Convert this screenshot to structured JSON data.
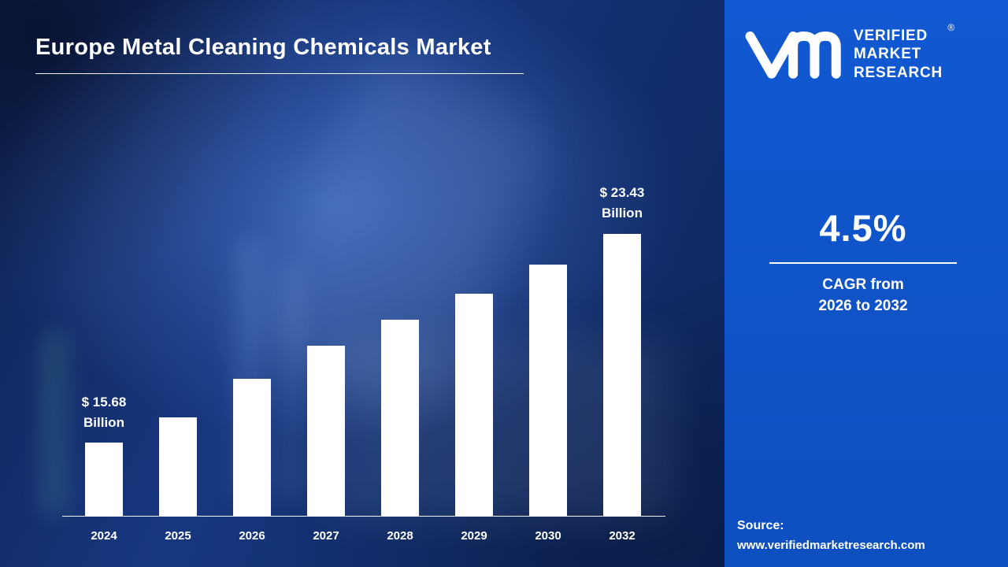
{
  "title": "Europe Metal Cleaning Chemicals Market",
  "chart_data": {
    "type": "bar",
    "title": "Europe Metal Cleaning Chemicals Market",
    "categories": [
      "2024",
      "2025",
      "2026",
      "2027",
      "2028",
      "2029",
      "2030",
      "2032"
    ],
    "values": [
      15.68,
      16.6,
      18.0,
      19.2,
      20.15,
      21.1,
      22.15,
      23.43
    ],
    "unit": "USD Billion",
    "ylim": [
      13,
      24
    ],
    "bar_color": "#ffffff",
    "grid": false,
    "legend": "none",
    "annotations": [
      {
        "index": 0,
        "lines": [
          "$ 15.68",
          "Billion"
        ]
      },
      {
        "index": 7,
        "lines": [
          "$ 23.43",
          "Billion"
        ]
      }
    ]
  },
  "sidebar": {
    "brand": {
      "lines": [
        "VERIFIED",
        "MARKET",
        "RESEARCH"
      ],
      "registered_mark": "®"
    },
    "cagr_value": "4.5%",
    "cagr_caption": [
      "CAGR from",
      "2026 to 2032"
    ],
    "source_label": "Source:",
    "source_url": "www.verifiedmarketresearch.com"
  },
  "colors": {
    "left_background": "#14306f",
    "right_panel": "#0f55cb",
    "bar": "#ffffff",
    "text": "#ffffff"
  }
}
